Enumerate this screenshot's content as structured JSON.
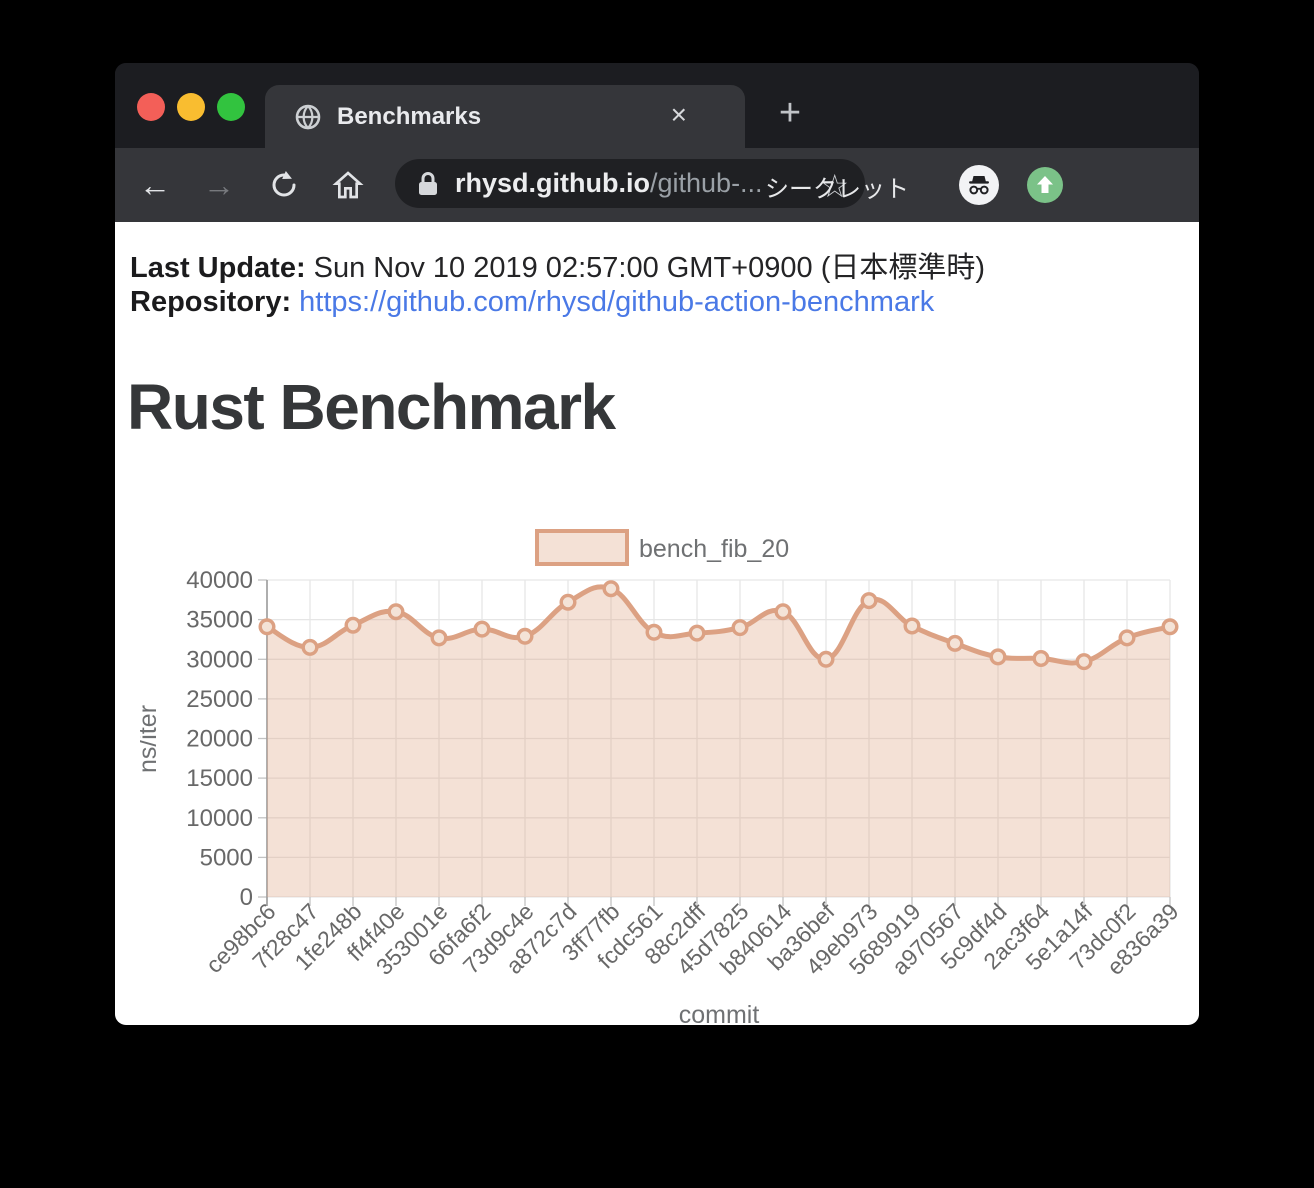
{
  "browser": {
    "tab": {
      "title": "Benchmarks",
      "close_glyph": "×",
      "favicon": "globe-icon"
    },
    "new_tab_glyph": "+",
    "nav": {
      "back_glyph": "←",
      "forward_glyph": "→"
    },
    "address": {
      "host": "rhysd.github.io",
      "path": "/github-...",
      "star_glyph": "☆"
    },
    "incognito_label": "シークレット",
    "colors": {
      "toolbar": "#35363a",
      "titlebar": "#1c1d21",
      "omnibox": "#1f2023",
      "extension_badge": "#7bc288"
    }
  },
  "page": {
    "last_update_label": "Last Update:",
    "last_update_value": "Sun Nov 10 2019 02:57:00 GMT+0900 (日本標準時)",
    "repository_label": "Repository:",
    "repository_link": "https://github.com/rhysd/github-action-benchmark",
    "heading": "Rust Benchmark"
  },
  "chart_data": {
    "type": "area",
    "title": "",
    "legend": "bench_fib_20",
    "legend_position": "top",
    "xlabel": "commit",
    "ylabel": "ns/iter",
    "ylim": [
      0,
      40000
    ],
    "grid": true,
    "y_ticks": [
      40000,
      35000,
      30000,
      25000,
      20000,
      15000,
      10000,
      5000,
      0
    ],
    "categories": [
      "ce98bc6",
      "7f28c47",
      "1fe248b",
      "ff4f40e",
      "353001e",
      "66fa6f2",
      "73d9c4e",
      "a872c7d",
      "3ff77fb",
      "fcdc561",
      "88c2dff",
      "45d7825",
      "b840614",
      "ba36bef",
      "49eb973",
      "5689919",
      "a970567",
      "5c9df4d",
      "2ac3f64",
      "5e1a14f",
      "73dc0f2",
      "e836a39"
    ],
    "values": [
      34100,
      31500,
      34300,
      36000,
      32700,
      33800,
      32900,
      37200,
      38900,
      33400,
      33300,
      34000,
      36000,
      30000,
      37400,
      34200,
      32000,
      30300,
      30100,
      29700,
      32700,
      34100
    ],
    "line_color": "#dca183",
    "fill_color": "rgba(222,165,132,0.33)",
    "point_fill": "#f4e3d7",
    "grid_color": "#e6e6e6",
    "axis_color": "#9b9b9b",
    "tick_color": "#c2c2c2"
  }
}
